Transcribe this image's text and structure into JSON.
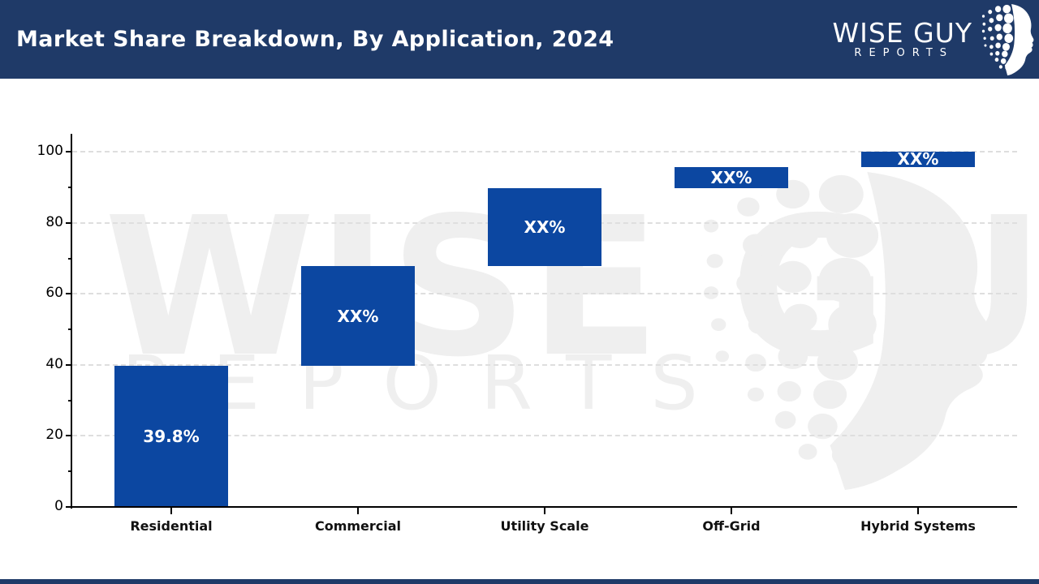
{
  "header": {
    "title": "Market Share Breakdown, By Application, 2024",
    "logo": {
      "line1": "WISE GUY",
      "line2": "REPORTS"
    }
  },
  "watermark": {
    "line1": "WISE GUY",
    "line2": "REPORTS"
  },
  "colors": {
    "header_bg": "#1f3a68",
    "footer_bg": "#1f3a68",
    "bar": "#0c47a1",
    "grid": "#dedede",
    "axis": "#000000",
    "bar_label": "#ffffff",
    "watermark": "#efefef"
  },
  "chart_data": {
    "type": "bar",
    "subtype": "waterfall",
    "title": "Market Share Breakdown, By Application, 2024",
    "categories": [
      "Residential",
      "Commercial",
      "Utility Scale",
      "Off-Grid",
      "Hybrid Systems"
    ],
    "segments": [
      {
        "category": "Residential",
        "start": 0,
        "end": 39.8,
        "value": 39.8,
        "label": "39.8%"
      },
      {
        "category": "Commercial",
        "start": 39.8,
        "end": 67.8,
        "value": 28,
        "label": "XX%"
      },
      {
        "category": "Utility Scale",
        "start": 67.8,
        "end": 89.8,
        "value": 22,
        "label": "XX%"
      },
      {
        "category": "Off-Grid",
        "start": 89.8,
        "end": 95.8,
        "value": 6,
        "label": "XX%"
      },
      {
        "category": "Hybrid Systems",
        "start": 95.8,
        "end": 100,
        "value": 4.2,
        "label": "XX%"
      }
    ],
    "xlabel": "",
    "ylabel": "",
    "ylim": [
      0,
      100
    ],
    "yticks": [
      0,
      20,
      40,
      60,
      80,
      100
    ],
    "yticks_minor": [
      10,
      30,
      50,
      70,
      90
    ],
    "grid": "horizontal-dashed",
    "legend": "none",
    "bar_color": "#0c47a1"
  }
}
